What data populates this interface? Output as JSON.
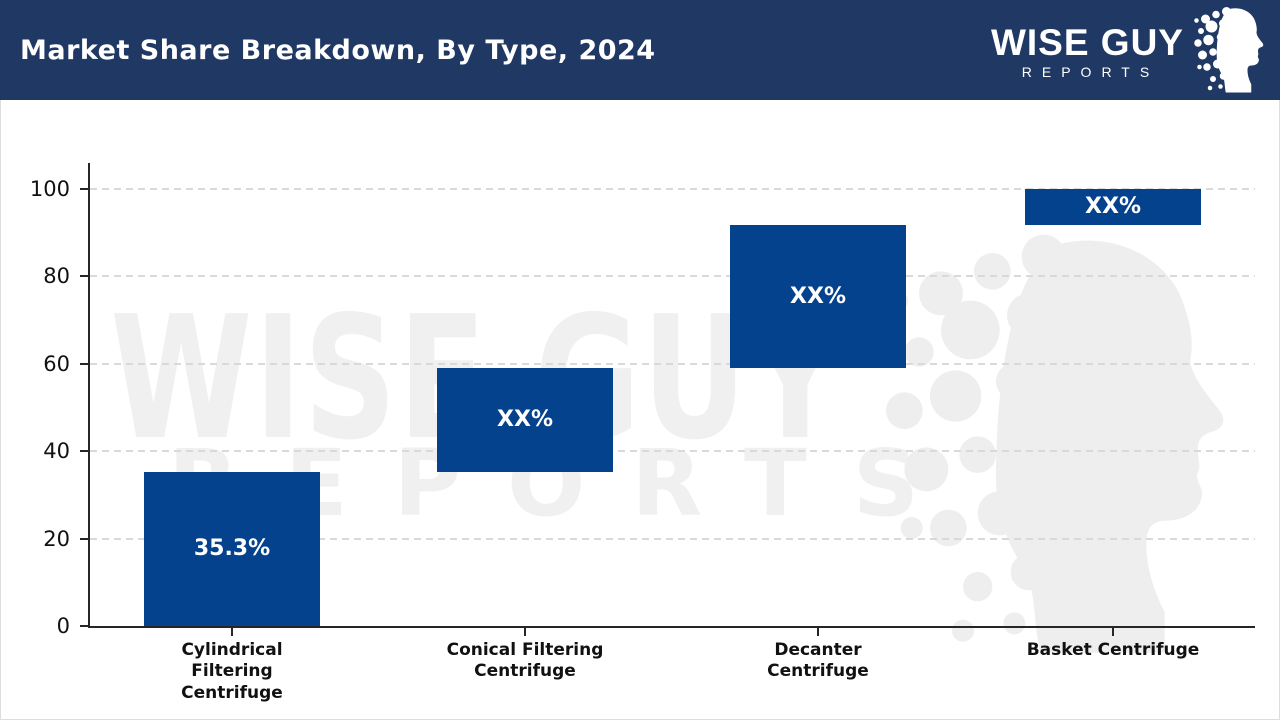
{
  "header": {
    "title": "Market Share Breakdown, By Type, 2024",
    "logo": {
      "brand_line1": "WISE GUY",
      "brand_line2": "REPORTS"
    }
  },
  "watermark": {
    "line1": "WISE GUY",
    "line2": "REPORTS"
  },
  "chart_data": {
    "type": "bar",
    "subtype": "waterfall",
    "title": "Market Share Breakdown, By Type, 2024",
    "categories": [
      "Cylindrical\nFiltering\nCentrifuge",
      "Conical Filtering\nCentrifuge",
      "Decanter\nCentrifuge",
      "Basket Centrifuge"
    ],
    "values": [
      35.3,
      23.7,
      32.7,
      8.3
    ],
    "segments": [
      {
        "category": "Cylindrical Filtering Centrifuge",
        "start": 0,
        "end": 35.3,
        "label": "35.3%"
      },
      {
        "category": "Conical Filtering Centrifuge",
        "start": 35.3,
        "end": 59.0,
        "label": "XX%"
      },
      {
        "category": "Decanter Centrifuge",
        "start": 59.0,
        "end": 91.7,
        "label": "XX%"
      },
      {
        "category": "Basket Centrifuge",
        "start": 91.7,
        "end": 100,
        "label": "XX%"
      }
    ],
    "xlabel": "",
    "ylabel": "",
    "ylim": [
      0,
      100
    ],
    "yticks": [
      0,
      20,
      40,
      60,
      80,
      100
    ],
    "grid": "horizontal-dashed",
    "legend": "none",
    "colors": {
      "bar": "#05428E",
      "bar_label": "#FFFFFF",
      "grid": "#D9D9D9",
      "axis": "#262626",
      "tick_label": "#111111",
      "header_bg": "#1F3864",
      "watermark": "#F0F0F0"
    }
  }
}
